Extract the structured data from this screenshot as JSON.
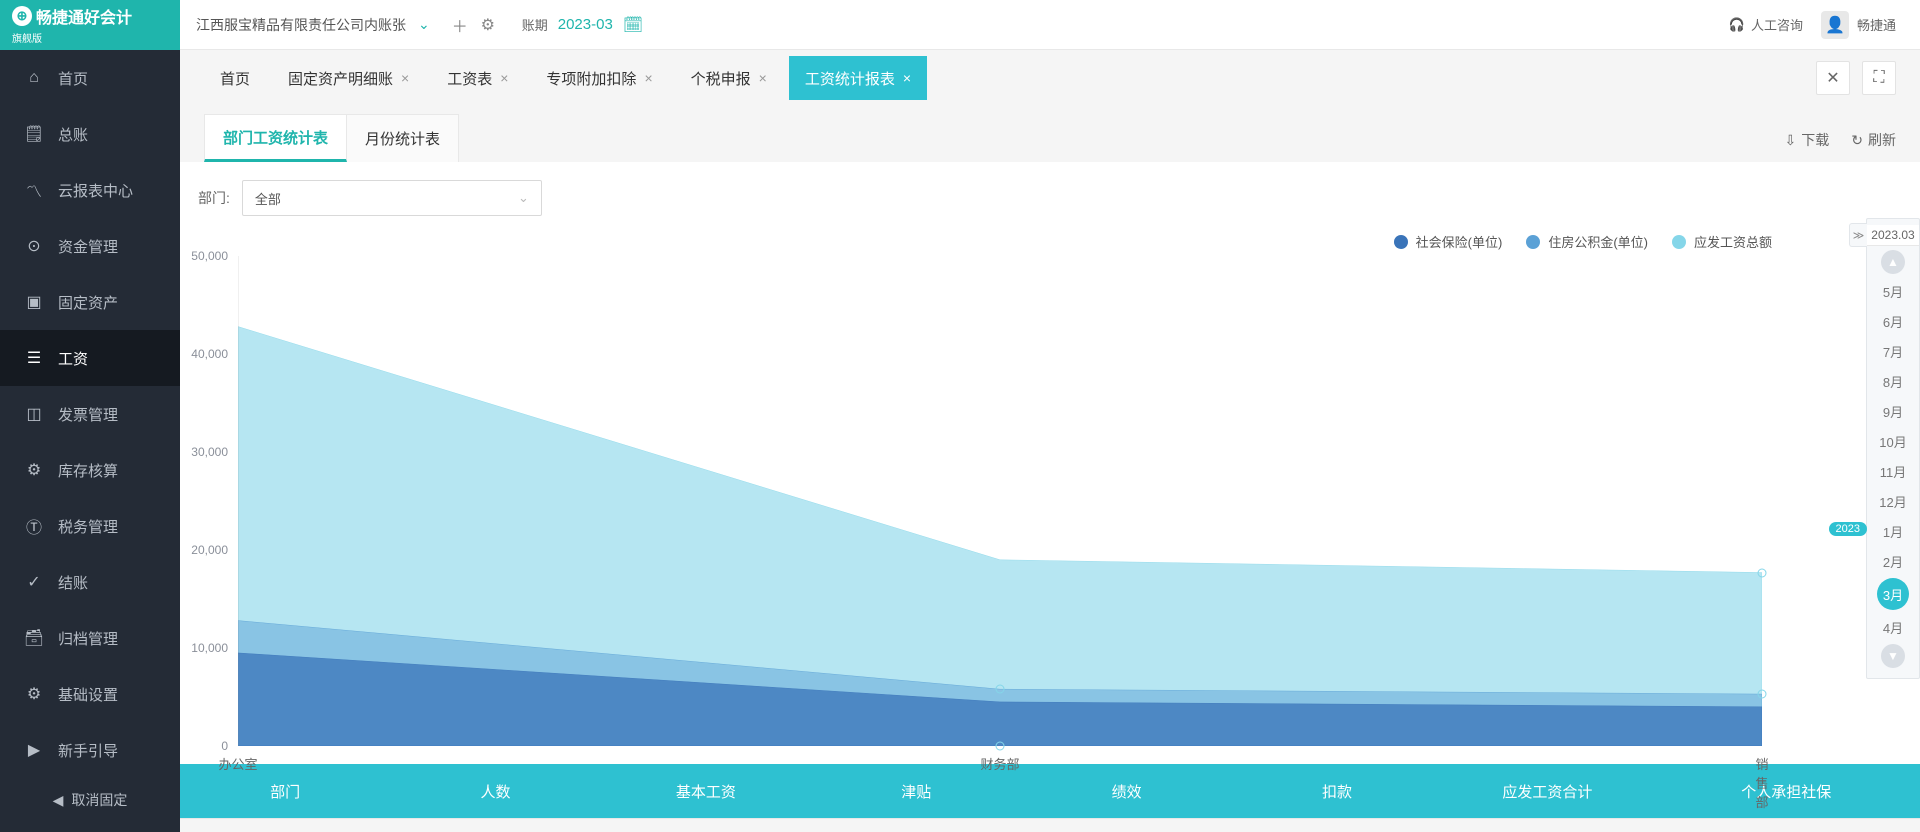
{
  "logo": {
    "brand": "畅捷通好会计",
    "edition": "旗舰版",
    "iconGlyph": "⊕"
  },
  "topbar": {
    "companyName": "江西服宝精品有限责任公司内账张",
    "periodLabel": "账期",
    "periodValue": "2023-03",
    "supportLabel": "人工咨询",
    "userName": "畅捷通"
  },
  "sidebar": {
    "items": [
      {
        "id": "home",
        "label": "首页",
        "icon": "⌂"
      },
      {
        "id": "ledger",
        "label": "总账",
        "icon": "🗒"
      },
      {
        "id": "cloud",
        "label": "云报表中心",
        "icon": "〽"
      },
      {
        "id": "fund",
        "label": "资金管理",
        "icon": "⊙"
      },
      {
        "id": "fixed",
        "label": "固定资产",
        "icon": "▣"
      },
      {
        "id": "salary",
        "label": "工资",
        "icon": "☰"
      },
      {
        "id": "invoice",
        "label": "发票管理",
        "icon": "◫"
      },
      {
        "id": "stock",
        "label": "库存核算",
        "icon": "⚙"
      },
      {
        "id": "tax",
        "label": "税务管理",
        "icon": "Ⓣ"
      },
      {
        "id": "close",
        "label": "结账",
        "icon": "✓"
      },
      {
        "id": "archive",
        "label": "归档管理",
        "icon": "🗃"
      },
      {
        "id": "base",
        "label": "基础设置",
        "icon": "⚙"
      },
      {
        "id": "guide",
        "label": "新手引导",
        "icon": "▶"
      }
    ],
    "footer": "取消固定"
  },
  "tabs": [
    {
      "label": "首页",
      "closable": false
    },
    {
      "label": "固定资产明细账",
      "closable": true
    },
    {
      "label": "工资表",
      "closable": true
    },
    {
      "label": "专项附加扣除",
      "closable": true
    },
    {
      "label": "个税申报",
      "closable": true
    },
    {
      "label": "工资统计报表",
      "closable": true,
      "active": true
    }
  ],
  "subtabs": [
    {
      "label": "部门工资统计表",
      "active": true
    },
    {
      "label": "月份统计表",
      "active": false
    }
  ],
  "actions": {
    "download": "下载",
    "refresh": "刷新"
  },
  "filter": {
    "label": "部门:",
    "value": "全部"
  },
  "chart": {
    "legend": [
      {
        "label": "社会保险(单位)",
        "color": "#3a74b9"
      },
      {
        "label": "住房公积金(单位)",
        "color": "#5ba1d6"
      },
      {
        "label": "应发工资总额",
        "color": "#85d6e9"
      }
    ],
    "categories": [
      "办公室",
      "财务部",
      "销售部"
    ],
    "yticks": [
      "0",
      "10,000",
      "20,000",
      "30,000",
      "40,000",
      "50,000"
    ],
    "ymax": 50000,
    "series": {
      "社会保险(单位)": {
        "color": "#3a74b9",
        "fill": "rgba(58,116,185,0.75)",
        "values": [
          9500,
          4500,
          4000
        ]
      },
      "住房公积金(单位)": {
        "color": "#5ba1d6",
        "fill": "rgba(91,161,214,0.5)",
        "values": [
          12800,
          5800,
          5300
        ]
      },
      "应发工资总额": {
        "color": "#85d6e9",
        "fill": "rgba(133,214,233,0.6)",
        "values": [
          42800,
          19000,
          17700
        ]
      }
    },
    "markers": [
      {
        "x": 1,
        "y": 0
      },
      {
        "x": 1,
        "y": 5800
      },
      {
        "x": 2,
        "y": 5300
      },
      {
        "x": 2,
        "y": 17700
      }
    ],
    "marker_color": "#85d6e9"
  },
  "tableHeaders": [
    "部门",
    "人数",
    "基本工资",
    "津贴",
    "绩效",
    "扣款",
    "应发工资合计",
    "个人承担社保"
  ],
  "monthPicker": {
    "header": "2023.03",
    "yearBadge": "2023",
    "months": [
      "5月",
      "6月",
      "7月",
      "8月",
      "9月",
      "10月",
      "11月",
      "12月",
      "1月",
      "2月",
      "3月",
      "4月"
    ],
    "yearBreakIndex": 8,
    "selected": "3月"
  }
}
